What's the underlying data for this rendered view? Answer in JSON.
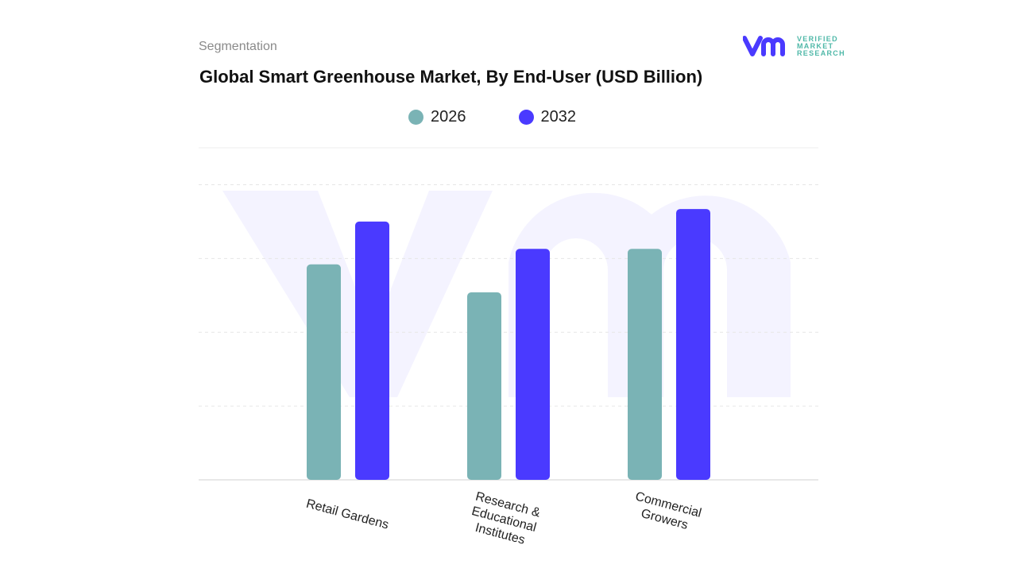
{
  "header": {
    "section_label": "Segmentation",
    "title": "Global Smart Greenhouse Market, By End-User (USD Billion)"
  },
  "logo": {
    "line1": "VERIFIED",
    "line2": "MARKET",
    "line3": "RESEARCH",
    "mark": "vmr"
  },
  "colors": {
    "2026": "#7ab3b5",
    "2032": "#4a3aff",
    "grid": "#e3e3e3",
    "brand": "#4a3aff"
  },
  "chart_data": {
    "type": "bar",
    "title": "Global Smart Greenhouse Market, By End-User (USD Billion)",
    "categories": [
      "Retail Gardens",
      "Research & Educational Institutes",
      "Commercial Growers"
    ],
    "category_lines": [
      [
        "Retail Gardens"
      ],
      [
        "Research &",
        "Educational",
        "Institutes"
      ],
      [
        "Commercial",
        "Growers"
      ]
    ],
    "series": [
      {
        "name": "2026",
        "values": [
          2.92,
          2.54,
          3.13
        ]
      },
      {
        "name": "2032",
        "values": [
          3.5,
          3.13,
          3.67
        ]
      }
    ],
    "ylim": [
      0,
      4.5
    ],
    "grid": true,
    "y_tick_labels_shown": false,
    "legend_position": "top-center"
  }
}
